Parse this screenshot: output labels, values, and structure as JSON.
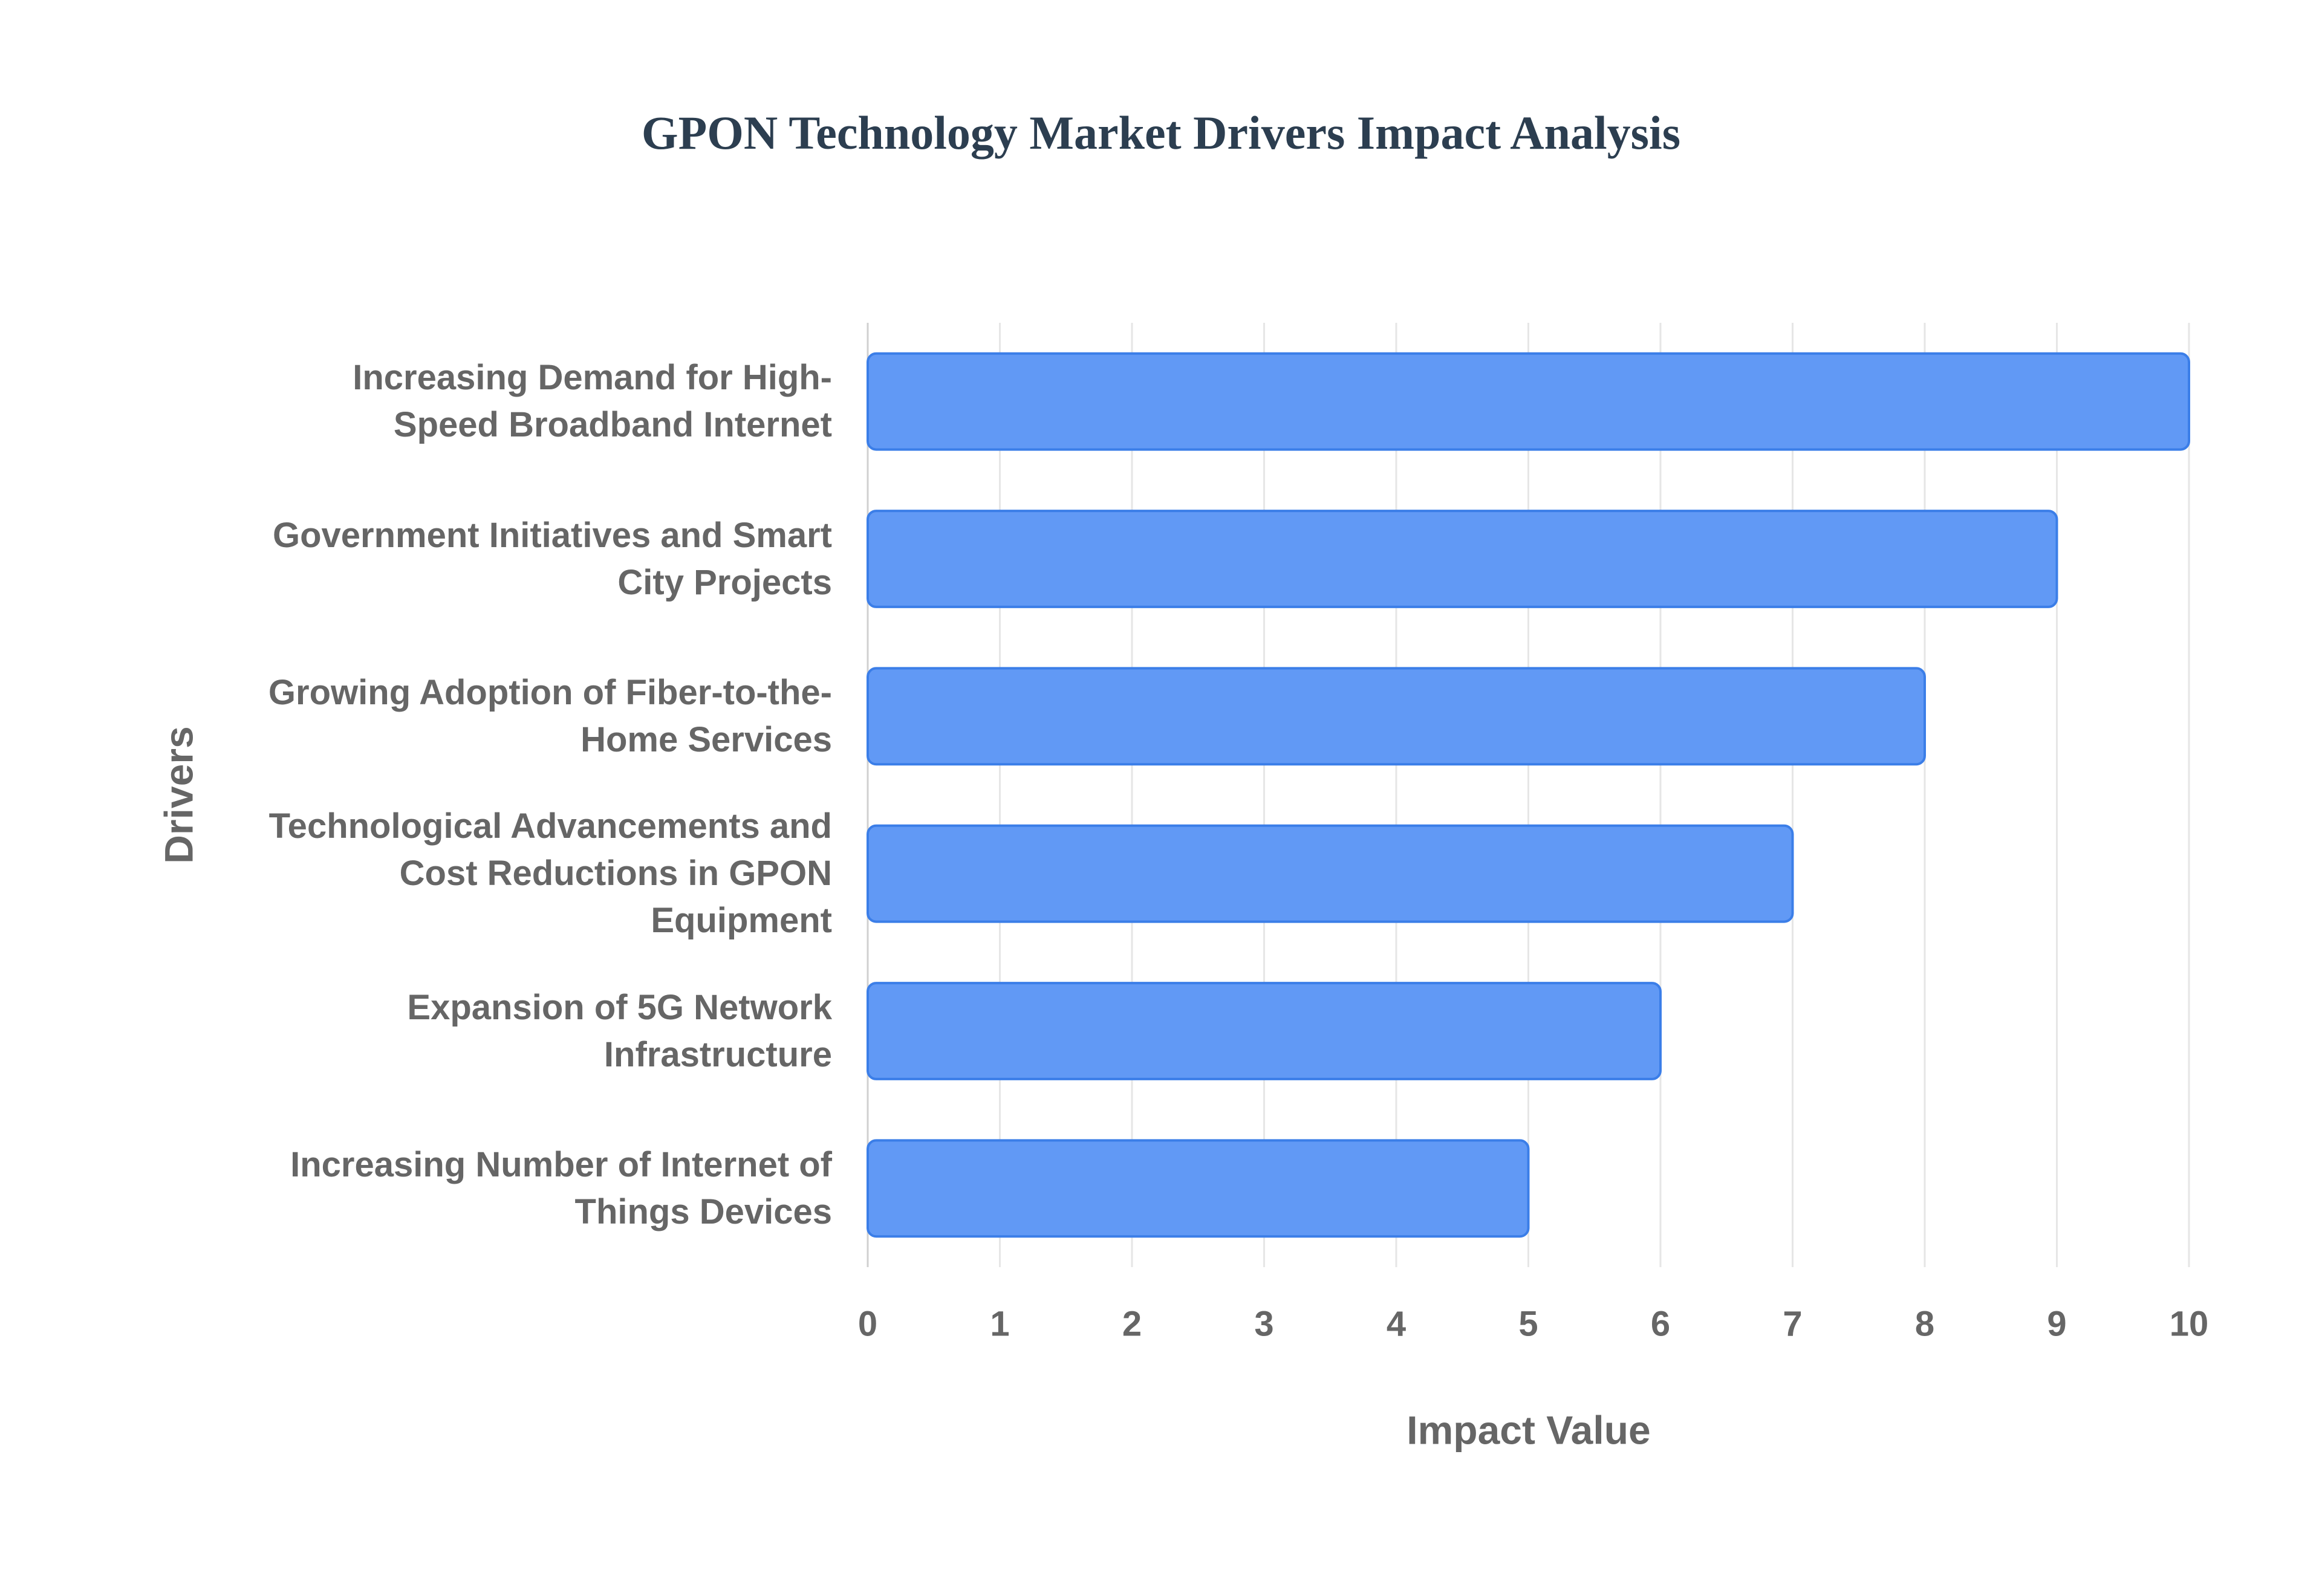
{
  "chart_data": {
    "type": "bar",
    "orientation": "horizontal",
    "title": "GPON Technology Market Drivers Impact Analysis",
    "x_label": "Impact Value",
    "y_label": "Drivers",
    "categories": [
      "Increasing Demand for High-Speed Broadband Internet",
      "Government Initiatives and Smart City Projects",
      "Growing Adoption of Fiber-to-the-Home Services",
      "Technological Advancements and Cost Reductions in GPON Equipment",
      "Expansion of 5G Network Infrastructure",
      "Increasing Number of Internet of Things Devices"
    ],
    "values": [
      10,
      9,
      8,
      7,
      6,
      5
    ],
    "color": "#6199f5",
    "edge_color": "#3b7ee8",
    "xlim": [
      0,
      10
    ],
    "xticks": [
      0,
      1,
      2,
      3,
      4,
      5,
      6,
      7,
      8,
      9,
      10
    ],
    "grid": true
  }
}
